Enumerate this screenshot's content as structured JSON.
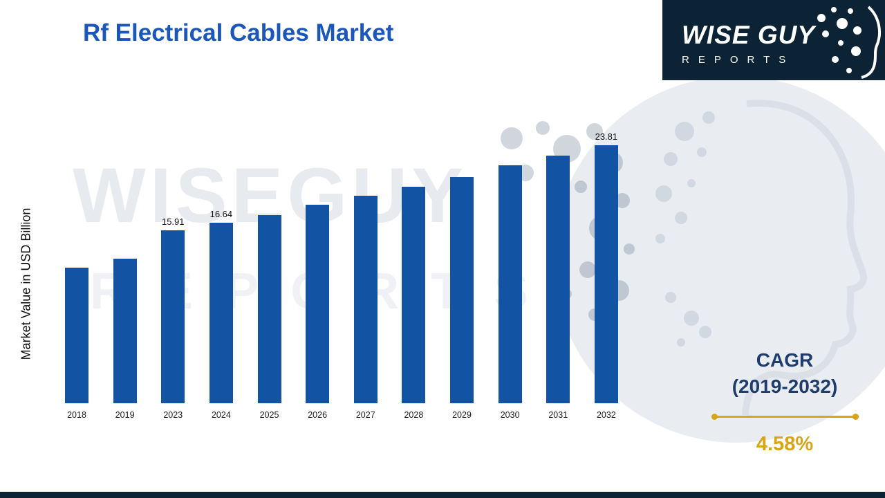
{
  "page": {
    "title": "Rf Electrical Cables Market"
  },
  "logo": {
    "brand": "WISE GUY",
    "sub": "REPORTS",
    "bg_color": "#0c2336",
    "text_color": "#ffffff"
  },
  "watermark": {
    "line1": "WISEGUY",
    "line2": "REPORTS"
  },
  "chart_data": {
    "type": "bar",
    "title": "Rf Electrical Cables Market",
    "xlabel": "",
    "ylabel": "Market Value in USD Billion",
    "categories": [
      "2018",
      "2019",
      "2023",
      "2024",
      "2025",
      "2026",
      "2027",
      "2028",
      "2029",
      "2030",
      "2031",
      "2032"
    ],
    "values": [
      12.5,
      13.3,
      15.91,
      16.64,
      17.35,
      18.3,
      19.1,
      19.95,
      20.85,
      21.9,
      22.85,
      23.81
    ],
    "value_labels": [
      "",
      "",
      "15.91",
      "16.64",
      "",
      "",
      "",
      "",
      "",
      "",
      "",
      "23.81"
    ],
    "bar_color": "#1253a3",
    "ylim": [
      0,
      25.5
    ],
    "grid": false,
    "legend": "none"
  },
  "cagr": {
    "label": "CAGR",
    "period": "(2019-2032)",
    "value": "4.58%",
    "label_color": "#1e3c6e",
    "value_color": "#d9a418"
  }
}
